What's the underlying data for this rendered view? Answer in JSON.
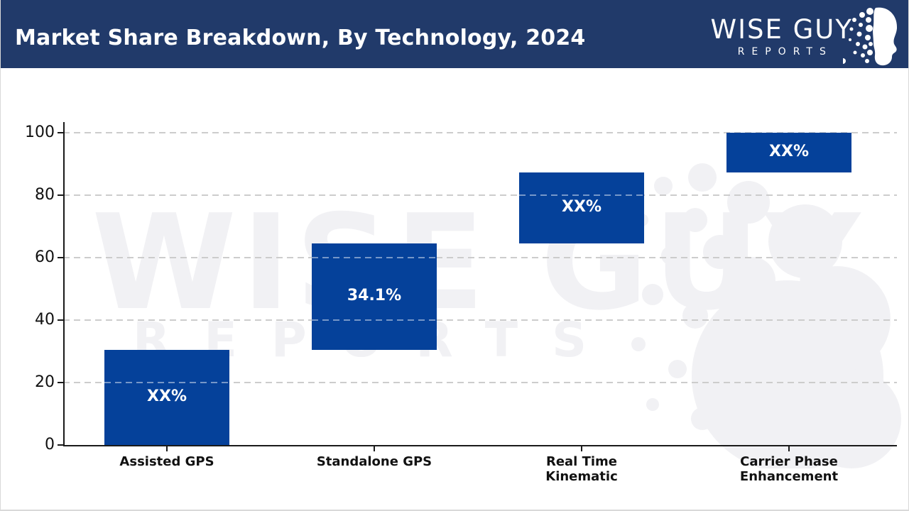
{
  "header": {
    "title": "Market Share Breakdown, By Technology, 2024",
    "bg_color": "#213a6a",
    "logo": {
      "primary": "WISE GUY",
      "secondary": "REPORTS"
    }
  },
  "watermark": {
    "primary": "WISE GUY",
    "secondary": "REPORTS"
  },
  "colors": {
    "bar": "#05419a",
    "gridline": "#cccccc",
    "axis": "#1a1a1a",
    "header_bg": "#213a6a",
    "watermark": "#f1f1f4"
  },
  "chart_data": {
    "type": "bar",
    "variant": "waterfall",
    "title": "Market Share Breakdown, By Technology, 2024",
    "unit": "%",
    "ylim": [
      0,
      100
    ],
    "yticks": [
      0,
      20,
      40,
      60,
      80,
      100
    ],
    "grid": "horizontal-dashed",
    "legend": "none",
    "bar_color": "#05419a",
    "bars": [
      {
        "category": "Assisted GPS",
        "start": 0,
        "end": 30.5,
        "label": "XX%"
      },
      {
        "category": "Standalone GPS",
        "start": 30.5,
        "end": 64.5,
        "label": "34.1%",
        "value": 34.1
      },
      {
        "category": "Real Time\nKinematic",
        "start": 64.5,
        "end": 87.3,
        "label": "XX%"
      },
      {
        "category": "Carrier Phase\nEnhancement",
        "start": 87.3,
        "end": 100,
        "label": "XX%"
      }
    ]
  }
}
